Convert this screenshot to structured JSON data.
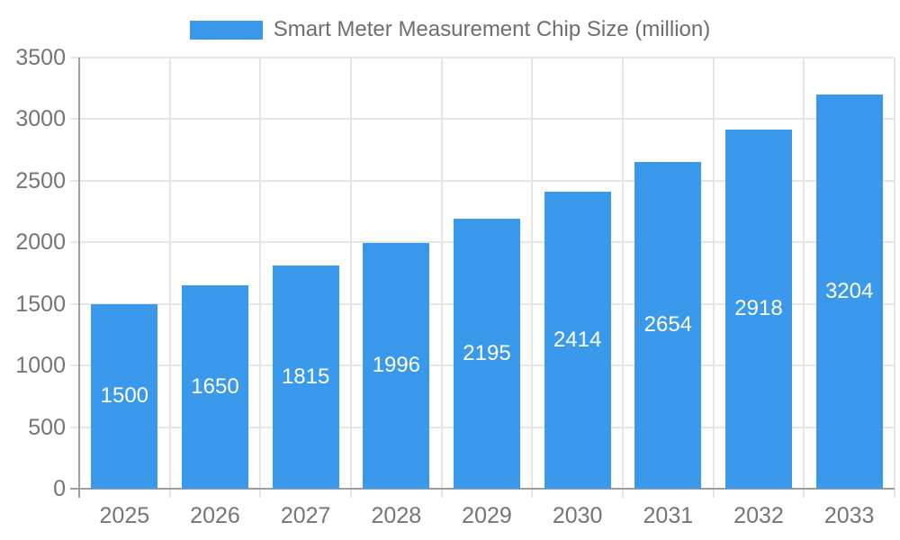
{
  "colors": {
    "bar": "#3B99EC",
    "bar_label": "#FFFFFF",
    "axis_label": "#757575",
    "legend_text": "#6E6E6E",
    "gridline": "#E6E6E6",
    "axis_line": "#9E9E9E",
    "background": "#FFFFFF"
  },
  "legend": {
    "label": "Smart Meter Measurement Chip Size (million)"
  },
  "chart_data": {
    "type": "bar",
    "title": "Smart Meter Measurement Chip Size (million)",
    "categories": [
      "2025",
      "2026",
      "2027",
      "2028",
      "2029",
      "2030",
      "2031",
      "2032",
      "2033"
    ],
    "values": [
      1500,
      1650,
      1815,
      1996,
      2195,
      2414,
      2654,
      2918,
      3204
    ],
    "xlabel": "",
    "ylabel": "",
    "ylim": [
      0,
      3500
    ],
    "yticks": [
      0,
      500,
      1000,
      1500,
      2000,
      2500,
      3000,
      3500
    ],
    "grid": true,
    "legend_position": "top",
    "bar_labels_inside": true,
    "bar_label_position": "center"
  }
}
